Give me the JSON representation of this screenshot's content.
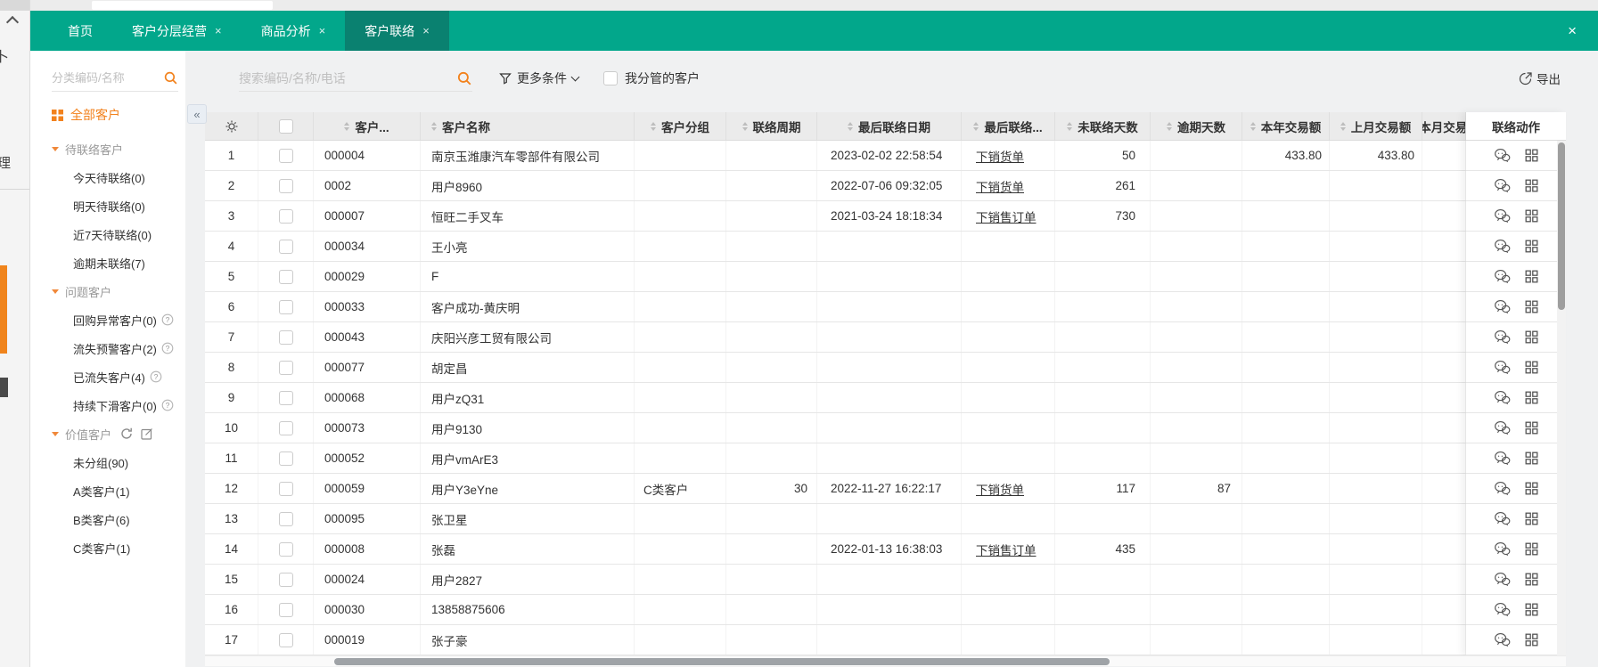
{
  "topbar": {
    "tabs": [
      {
        "label": "首页",
        "closable": false,
        "active": false
      },
      {
        "label": "客户分层经营",
        "closable": true,
        "active": false
      },
      {
        "label": "商品分析",
        "closable": true,
        "active": false
      },
      {
        "label": "客户联络",
        "closable": true,
        "active": true
      }
    ],
    "tab_close": "×",
    "close_all": "×"
  },
  "sidebar": {
    "search_placeholder": "分类编码/名称",
    "all_customers_label": "全部客户",
    "collapse_icon": "«",
    "groups": [
      {
        "label": "待联络客户",
        "actions": [],
        "children": [
          {
            "label": "今天待联络(0)",
            "help": false
          },
          {
            "label": "明天待联络(0)",
            "help": false
          },
          {
            "label": "近7天待联络(0)",
            "help": false
          },
          {
            "label": "逾期未联络(7)",
            "help": false
          }
        ]
      },
      {
        "label": "问题客户",
        "actions": [],
        "children": [
          {
            "label": "回购异常客户(0)",
            "help": true
          },
          {
            "label": "流失预警客户(2)",
            "help": true
          },
          {
            "label": "已流失客户(4)",
            "help": true
          },
          {
            "label": "持续下滑客户(0)",
            "help": true
          }
        ]
      },
      {
        "label": "价值客户",
        "actions": [
          "refresh",
          "edit"
        ],
        "children": [
          {
            "label": "未分组(90)",
            "help": false
          },
          {
            "label": "A类客户(1)",
            "help": false
          },
          {
            "label": "B类客户(6)",
            "help": false
          },
          {
            "label": "C类客户(1)",
            "help": false
          }
        ]
      }
    ]
  },
  "toolbar": {
    "search_placeholder": "搜索编码/名称/电话",
    "more_filters_label": "更多条件",
    "my_customers_label": "我分管的客户",
    "export_label": "导出"
  },
  "table": {
    "headers": [
      "客户...",
      "客户名称",
      "客户分组",
      "联络周期",
      "最后联络日期",
      "最后联络...",
      "未联络天数",
      "逾期天数",
      "本年交易额",
      "上月交易额",
      "本月交易额"
    ],
    "fixed_header": "联络动作",
    "rows": [
      {
        "n": "1",
        "code": "000004",
        "name": "南京玉潍康汽车零部件有限公司",
        "group": "",
        "cycle": "",
        "last_date": "2023-02-02 22:58:54",
        "last_action": "下销货单",
        "days": "50",
        "overdue": "",
        "year_amt": "433.80",
        "last_month_amt": "433.80",
        "this_month_amt": ""
      },
      {
        "n": "2",
        "code": "0002",
        "name": "用户8960",
        "group": "",
        "cycle": "",
        "last_date": "2022-07-06 09:32:05",
        "last_action": "下销货单",
        "days": "261",
        "overdue": "",
        "year_amt": "",
        "last_month_amt": "",
        "this_month_amt": ""
      },
      {
        "n": "3",
        "code": "000007",
        "name": "恒旺二手叉车",
        "group": "",
        "cycle": "",
        "last_date": "2021-03-24 18:18:34",
        "last_action": "下销售订单",
        "days": "730",
        "overdue": "",
        "year_amt": "",
        "last_month_amt": "",
        "this_month_amt": ""
      },
      {
        "n": "4",
        "code": "000034",
        "name": "王小亮",
        "group": "",
        "cycle": "",
        "last_date": "",
        "last_action": "",
        "days": "",
        "overdue": "",
        "year_amt": "",
        "last_month_amt": "",
        "this_month_amt": ""
      },
      {
        "n": "5",
        "code": "000029",
        "name": "F",
        "group": "",
        "cycle": "",
        "last_date": "",
        "last_action": "",
        "days": "",
        "overdue": "",
        "year_amt": "",
        "last_month_amt": "",
        "this_month_amt": ""
      },
      {
        "n": "6",
        "code": "000033",
        "name": "客户成功-黄庆明",
        "group": "",
        "cycle": "",
        "last_date": "",
        "last_action": "",
        "days": "",
        "overdue": "",
        "year_amt": "",
        "last_month_amt": "",
        "this_month_amt": ""
      },
      {
        "n": "7",
        "code": "000043",
        "name": "庆阳兴彦工贸有限公司",
        "group": "",
        "cycle": "",
        "last_date": "",
        "last_action": "",
        "days": "",
        "overdue": "",
        "year_amt": "",
        "last_month_amt": "",
        "this_month_amt": ""
      },
      {
        "n": "8",
        "code": "000077",
        "name": "胡定昌",
        "group": "",
        "cycle": "",
        "last_date": "",
        "last_action": "",
        "days": "",
        "overdue": "",
        "year_amt": "",
        "last_month_amt": "",
        "this_month_amt": ""
      },
      {
        "n": "9",
        "code": "000068",
        "name": "用户zQ31",
        "group": "",
        "cycle": "",
        "last_date": "",
        "last_action": "",
        "days": "",
        "overdue": "",
        "year_amt": "",
        "last_month_amt": "",
        "this_month_amt": ""
      },
      {
        "n": "10",
        "code": "000073",
        "name": "用户9130",
        "group": "",
        "cycle": "",
        "last_date": "",
        "last_action": "",
        "days": "",
        "overdue": "",
        "year_amt": "",
        "last_month_amt": "",
        "this_month_amt": ""
      },
      {
        "n": "11",
        "code": "000052",
        "name": "用户vmArE3",
        "group": "",
        "cycle": "",
        "last_date": "",
        "last_action": "",
        "days": "",
        "overdue": "",
        "year_amt": "",
        "last_month_amt": "",
        "this_month_amt": ""
      },
      {
        "n": "12",
        "code": "000059",
        "name": "用户Y3eYne",
        "group": "C类客户",
        "cycle": "30",
        "last_date": "2022-11-27 16:22:17",
        "last_action": "下销货单",
        "days": "117",
        "overdue": "87",
        "year_amt": "",
        "last_month_amt": "",
        "this_month_amt": ""
      },
      {
        "n": "13",
        "code": "000095",
        "name": "张卫星",
        "group": "",
        "cycle": "",
        "last_date": "",
        "last_action": "",
        "days": "",
        "overdue": "",
        "year_amt": "",
        "last_month_amt": "",
        "this_month_amt": ""
      },
      {
        "n": "14",
        "code": "000008",
        "name": "张磊",
        "group": "",
        "cycle": "",
        "last_date": "2022-01-13 16:38:03",
        "last_action": "下销售订单",
        "days": "435",
        "overdue": "",
        "year_amt": "",
        "last_month_amt": "",
        "this_month_amt": ""
      },
      {
        "n": "15",
        "code": "000024",
        "name": "用户2827",
        "group": "",
        "cycle": "",
        "last_date": "",
        "last_action": "",
        "days": "",
        "overdue": "",
        "year_amt": "",
        "last_month_amt": "",
        "this_month_amt": ""
      },
      {
        "n": "16",
        "code": "000030",
        "name": "13858875606",
        "group": "",
        "cycle": "",
        "last_date": "",
        "last_action": "",
        "days": "",
        "overdue": "",
        "year_amt": "",
        "last_month_amt": "",
        "this_month_amt": ""
      },
      {
        "n": "17",
        "code": "000019",
        "name": "张子豪",
        "group": "",
        "cycle": "",
        "last_date": "",
        "last_action": "",
        "days": "",
        "overdue": "",
        "year_amt": "",
        "last_month_amt": "",
        "this_month_amt": ""
      }
    ]
  },
  "colors": {
    "topbar_green": "#02a78b",
    "active_tab_green": "#0a8170",
    "accent_orange": "#f2821d",
    "header_bg": "#ebebeb"
  }
}
